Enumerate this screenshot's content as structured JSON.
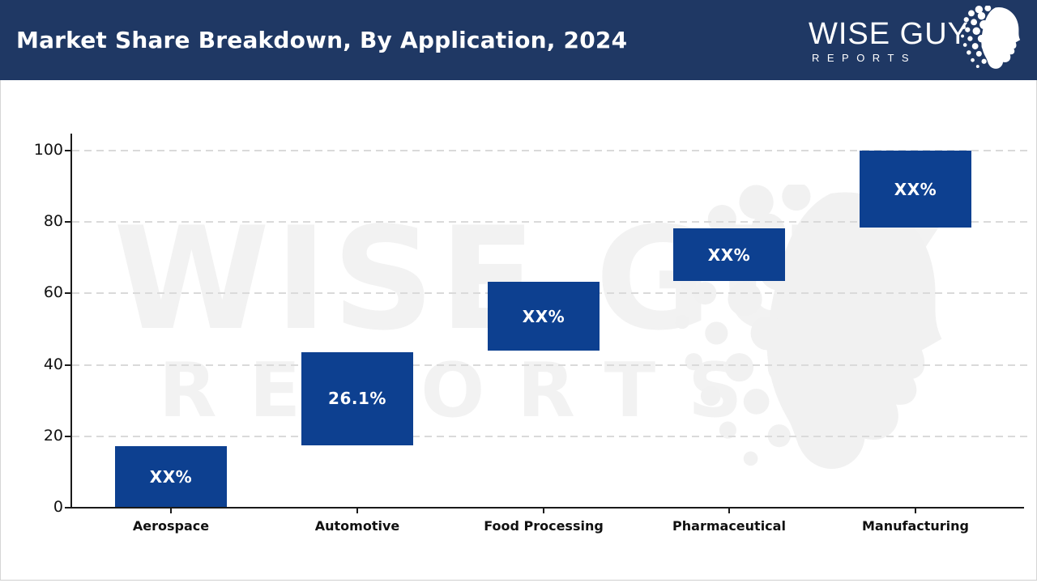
{
  "header": {
    "title": "Market Share Breakdown, By Application, 2024",
    "logo": {
      "name_line": "WISE GUY",
      "sub_line": "REPORTS"
    }
  },
  "watermark": {
    "name_line": "WISE GUY",
    "sub_line": "REPORTS"
  },
  "chart_data": {
    "type": "bar",
    "subtype": "floating-waterfall",
    "title": "Market Share Breakdown, By Application, 2024",
    "categories": [
      "Aerospace",
      "Automotive",
      "Food Processing",
      "Pharmaceutical",
      "Manufacturing"
    ],
    "segments": [
      {
        "category": "Aerospace",
        "start": 0,
        "end": 17.3,
        "label": "XX%"
      },
      {
        "category": "Automotive",
        "start": 17.5,
        "end": 43.6,
        "label": "26.1%"
      },
      {
        "category": "Food Processing",
        "start": 43.9,
        "end": 63.2,
        "label": "XX%"
      },
      {
        "category": "Pharmaceutical",
        "start": 63.4,
        "end": 78.2,
        "label": "XX%"
      },
      {
        "category": "Manufacturing",
        "start": 78.4,
        "end": 100,
        "label": "XX%"
      }
    ],
    "xlabel": "",
    "ylabel": "",
    "ylim": [
      0,
      105
    ],
    "yticks": [
      0,
      20,
      40,
      60,
      80,
      100
    ],
    "grid": {
      "horizontal": true,
      "style": "dashed",
      "color": "#dadada"
    },
    "legend": null,
    "colors": {
      "bar": "#0d4090",
      "bar_label": "#ffffff",
      "axis": "#1a1a1a",
      "tick_label": "#111111"
    }
  },
  "colors": {
    "header_bg": "#1f3864",
    "content_bg": "#ffffff",
    "watermark": "#f2f2f2",
    "frame_line": "#cfcfcf"
  }
}
